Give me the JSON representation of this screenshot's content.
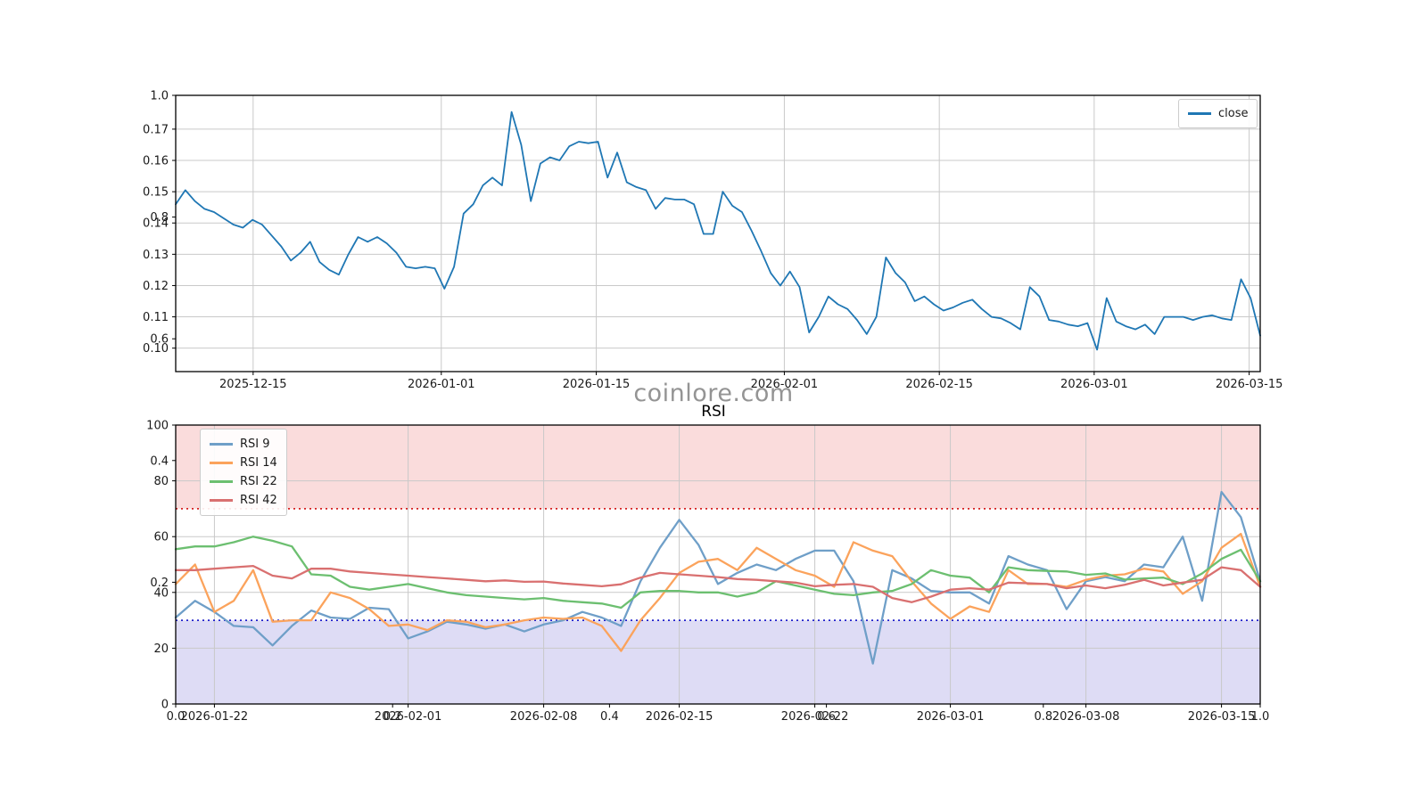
{
  "watermark": "coinlore.com",
  "colors": {
    "close_line": "#1f77b4",
    "grid": "#c9c9c9",
    "spine": "#000000",
    "tick_text": "#1a1a1a",
    "watermark_text": "#949494",
    "overbought_band": "#fadcdc",
    "oversold_band": "#dedcf5",
    "overbought_line": "#d62222",
    "oversold_line": "#2222cc"
  },
  "chart_data": [
    {
      "id": "price",
      "type": "line",
      "title": "",
      "legend_label": "close",
      "line_color": "#1f77b4",
      "x_range": [
        "2025-12-08",
        "2026-03-16"
      ],
      "ylim": [
        0.0925,
        0.1808
      ],
      "yticks": [
        0.17,
        0.16,
        0.15,
        0.14,
        0.13,
        0.12,
        0.11,
        0.1
      ],
      "xticks": [
        {
          "label": "2025-12-15",
          "f": 0.0714
        },
        {
          "label": "2026-01-01",
          "f": 0.2449
        },
        {
          "label": "2026-01-15",
          "f": 0.3878
        },
        {
          "label": "2026-02-01",
          "f": 0.5612
        },
        {
          "label": "2026-02-15",
          "f": 0.7041
        },
        {
          "label": "2026-03-01",
          "f": 0.8469
        },
        {
          "label": "2026-03-15",
          "f": 0.9898
        }
      ],
      "values": [
        0.146,
        0.1505,
        0.147,
        0.1445,
        0.1435,
        0.1415,
        0.1395,
        0.1385,
        0.141,
        0.1395,
        0.136,
        0.1325,
        0.128,
        0.1305,
        0.134,
        0.1275,
        0.125,
        0.1235,
        0.13,
        0.1355,
        0.134,
        0.1355,
        0.1335,
        0.1305,
        0.126,
        0.1255,
        0.126,
        0.1255,
        0.119,
        0.126,
        0.143,
        0.146,
        0.152,
        0.1545,
        0.152,
        0.1755,
        0.165,
        0.147,
        0.159,
        0.161,
        0.16,
        0.1645,
        0.166,
        0.1655,
        0.166,
        0.1545,
        0.1625,
        0.153,
        0.1515,
        0.1505,
        0.1445,
        0.148,
        0.1475,
        0.1475,
        0.146,
        0.1365,
        0.1365,
        0.15,
        0.1455,
        0.1435,
        0.1375,
        0.131,
        0.124,
        0.12,
        0.1245,
        0.1195,
        0.105,
        0.11,
        0.1165,
        0.114,
        0.1125,
        0.109,
        0.1045,
        0.11,
        0.129,
        0.124,
        0.121,
        0.115,
        0.1165,
        0.114,
        0.112,
        0.113,
        0.1145,
        0.1155,
        0.1125,
        0.11,
        0.1095,
        0.108,
        0.106,
        0.1195,
        0.1165,
        0.109,
        0.1085,
        0.1075,
        0.107,
        0.108,
        0.0995,
        0.116,
        0.1085,
        0.107,
        0.106,
        0.1075,
        0.1045,
        0.11,
        0.11,
        0.11,
        0.109,
        0.11,
        0.1105,
        0.1095,
        0.109,
        0.122,
        0.116,
        0.104
      ]
    },
    {
      "id": "rsi",
      "type": "line",
      "title": "RSI",
      "x_range": [
        "2026-01-20",
        "2026-03-17"
      ],
      "ylim": [
        0,
        100
      ],
      "yticks": [
        100,
        80,
        60,
        40,
        20,
        0
      ],
      "overbought_level": 70,
      "oversold_level": 30,
      "xticks": [
        {
          "label": "2026-01-22",
          "f": 0.0357
        },
        {
          "label": "2026-02-01",
          "f": 0.2143
        },
        {
          "label": "2026-02-08",
          "f": 0.3393
        },
        {
          "label": "2026-02-15",
          "f": 0.4643
        },
        {
          "label": "2026-02-22",
          "f": 0.5893
        },
        {
          "label": "2026-03-01",
          "f": 0.7143
        },
        {
          "label": "2026-03-08",
          "f": 0.8393
        },
        {
          "label": "2026-03-15",
          "f": 0.9643
        }
      ],
      "series": [
        {
          "name": "RSI 9",
          "color": "#6f9fc8",
          "values": [
            31,
            37,
            33,
            28,
            27.5,
            21,
            28,
            33.5,
            31,
            30.5,
            34.5,
            34,
            23.5,
            26,
            29.5,
            28.5,
            27,
            28.5,
            26,
            28.5,
            30,
            33,
            31,
            28,
            44,
            56,
            66,
            57,
            43,
            47,
            50,
            48,
            52,
            55,
            55,
            44,
            14.5,
            48,
            45,
            40.5,
            40,
            40,
            36,
            53,
            50,
            48,
            34,
            44,
            45.5,
            44,
            50,
            49,
            60,
            37,
            76,
            67,
            44
          ]
        },
        {
          "name": "RSI 14",
          "color": "#fba35c",
          "values": [
            43,
            50,
            33,
            37,
            48,
            29.5,
            30,
            30,
            40,
            38,
            34,
            28,
            28.5,
            26.5,
            30,
            29.5,
            27.5,
            28.5,
            30,
            31,
            30.5,
            31,
            28,
            19,
            30,
            38,
            47,
            51,
            52,
            48,
            56,
            52,
            48,
            46,
            42,
            58,
            55,
            53,
            44,
            36,
            30.5,
            35,
            33,
            48,
            43,
            43,
            42,
            44.5,
            46,
            46.5,
            48.5,
            47.5,
            39.5,
            44,
            56,
            61,
            42
          ]
        },
        {
          "name": "RSI 22",
          "color": "#6cbf70",
          "values": [
            55.5,
            56.5,
            56.5,
            58,
            60,
            58.5,
            56.5,
            46.5,
            46,
            42,
            41,
            42,
            43,
            41.5,
            40,
            39,
            38.5,
            38,
            37.5,
            38,
            37,
            36.5,
            36,
            34.5,
            40,
            40.5,
            40.5,
            40,
            40,
            38.5,
            40,
            44,
            42.5,
            41,
            39.5,
            39,
            40,
            40.5,
            43,
            48,
            46,
            45.3,
            40,
            49,
            48,
            47.7,
            47.5,
            46.3,
            46.8,
            44.6,
            45,
            45.3,
            43,
            46.8,
            52,
            55.3,
            44
          ]
        },
        {
          "name": "RSI 42",
          "color": "#d97070",
          "values": [
            48,
            48,
            48.5,
            49,
            49.5,
            46,
            45,
            48.5,
            48.5,
            47.5,
            47,
            46.5,
            46,
            45.5,
            45,
            44.5,
            44,
            44.3,
            43.8,
            43.9,
            43.2,
            42.7,
            42.2,
            42.9,
            45.3,
            47,
            46.5,
            46,
            45.5,
            44.8,
            44.5,
            44,
            43.5,
            42.2,
            42.7,
            43,
            42,
            38,
            36.5,
            38.5,
            41,
            41.5,
            41,
            43.5,
            43.3,
            43,
            41.5,
            42.5,
            41.5,
            42.7,
            44.5,
            42.5,
            43.5,
            44.5,
            49,
            48,
            42
          ]
        }
      ]
    }
  ],
  "overlay_axis": {
    "y_labels": [
      "1.0",
      "0.8",
      "0.6",
      "0.4",
      "0.2"
    ],
    "x_labels": [
      "0.0",
      "0.2",
      "0.4",
      "0.6",
      "0.8",
      "1.0"
    ]
  }
}
